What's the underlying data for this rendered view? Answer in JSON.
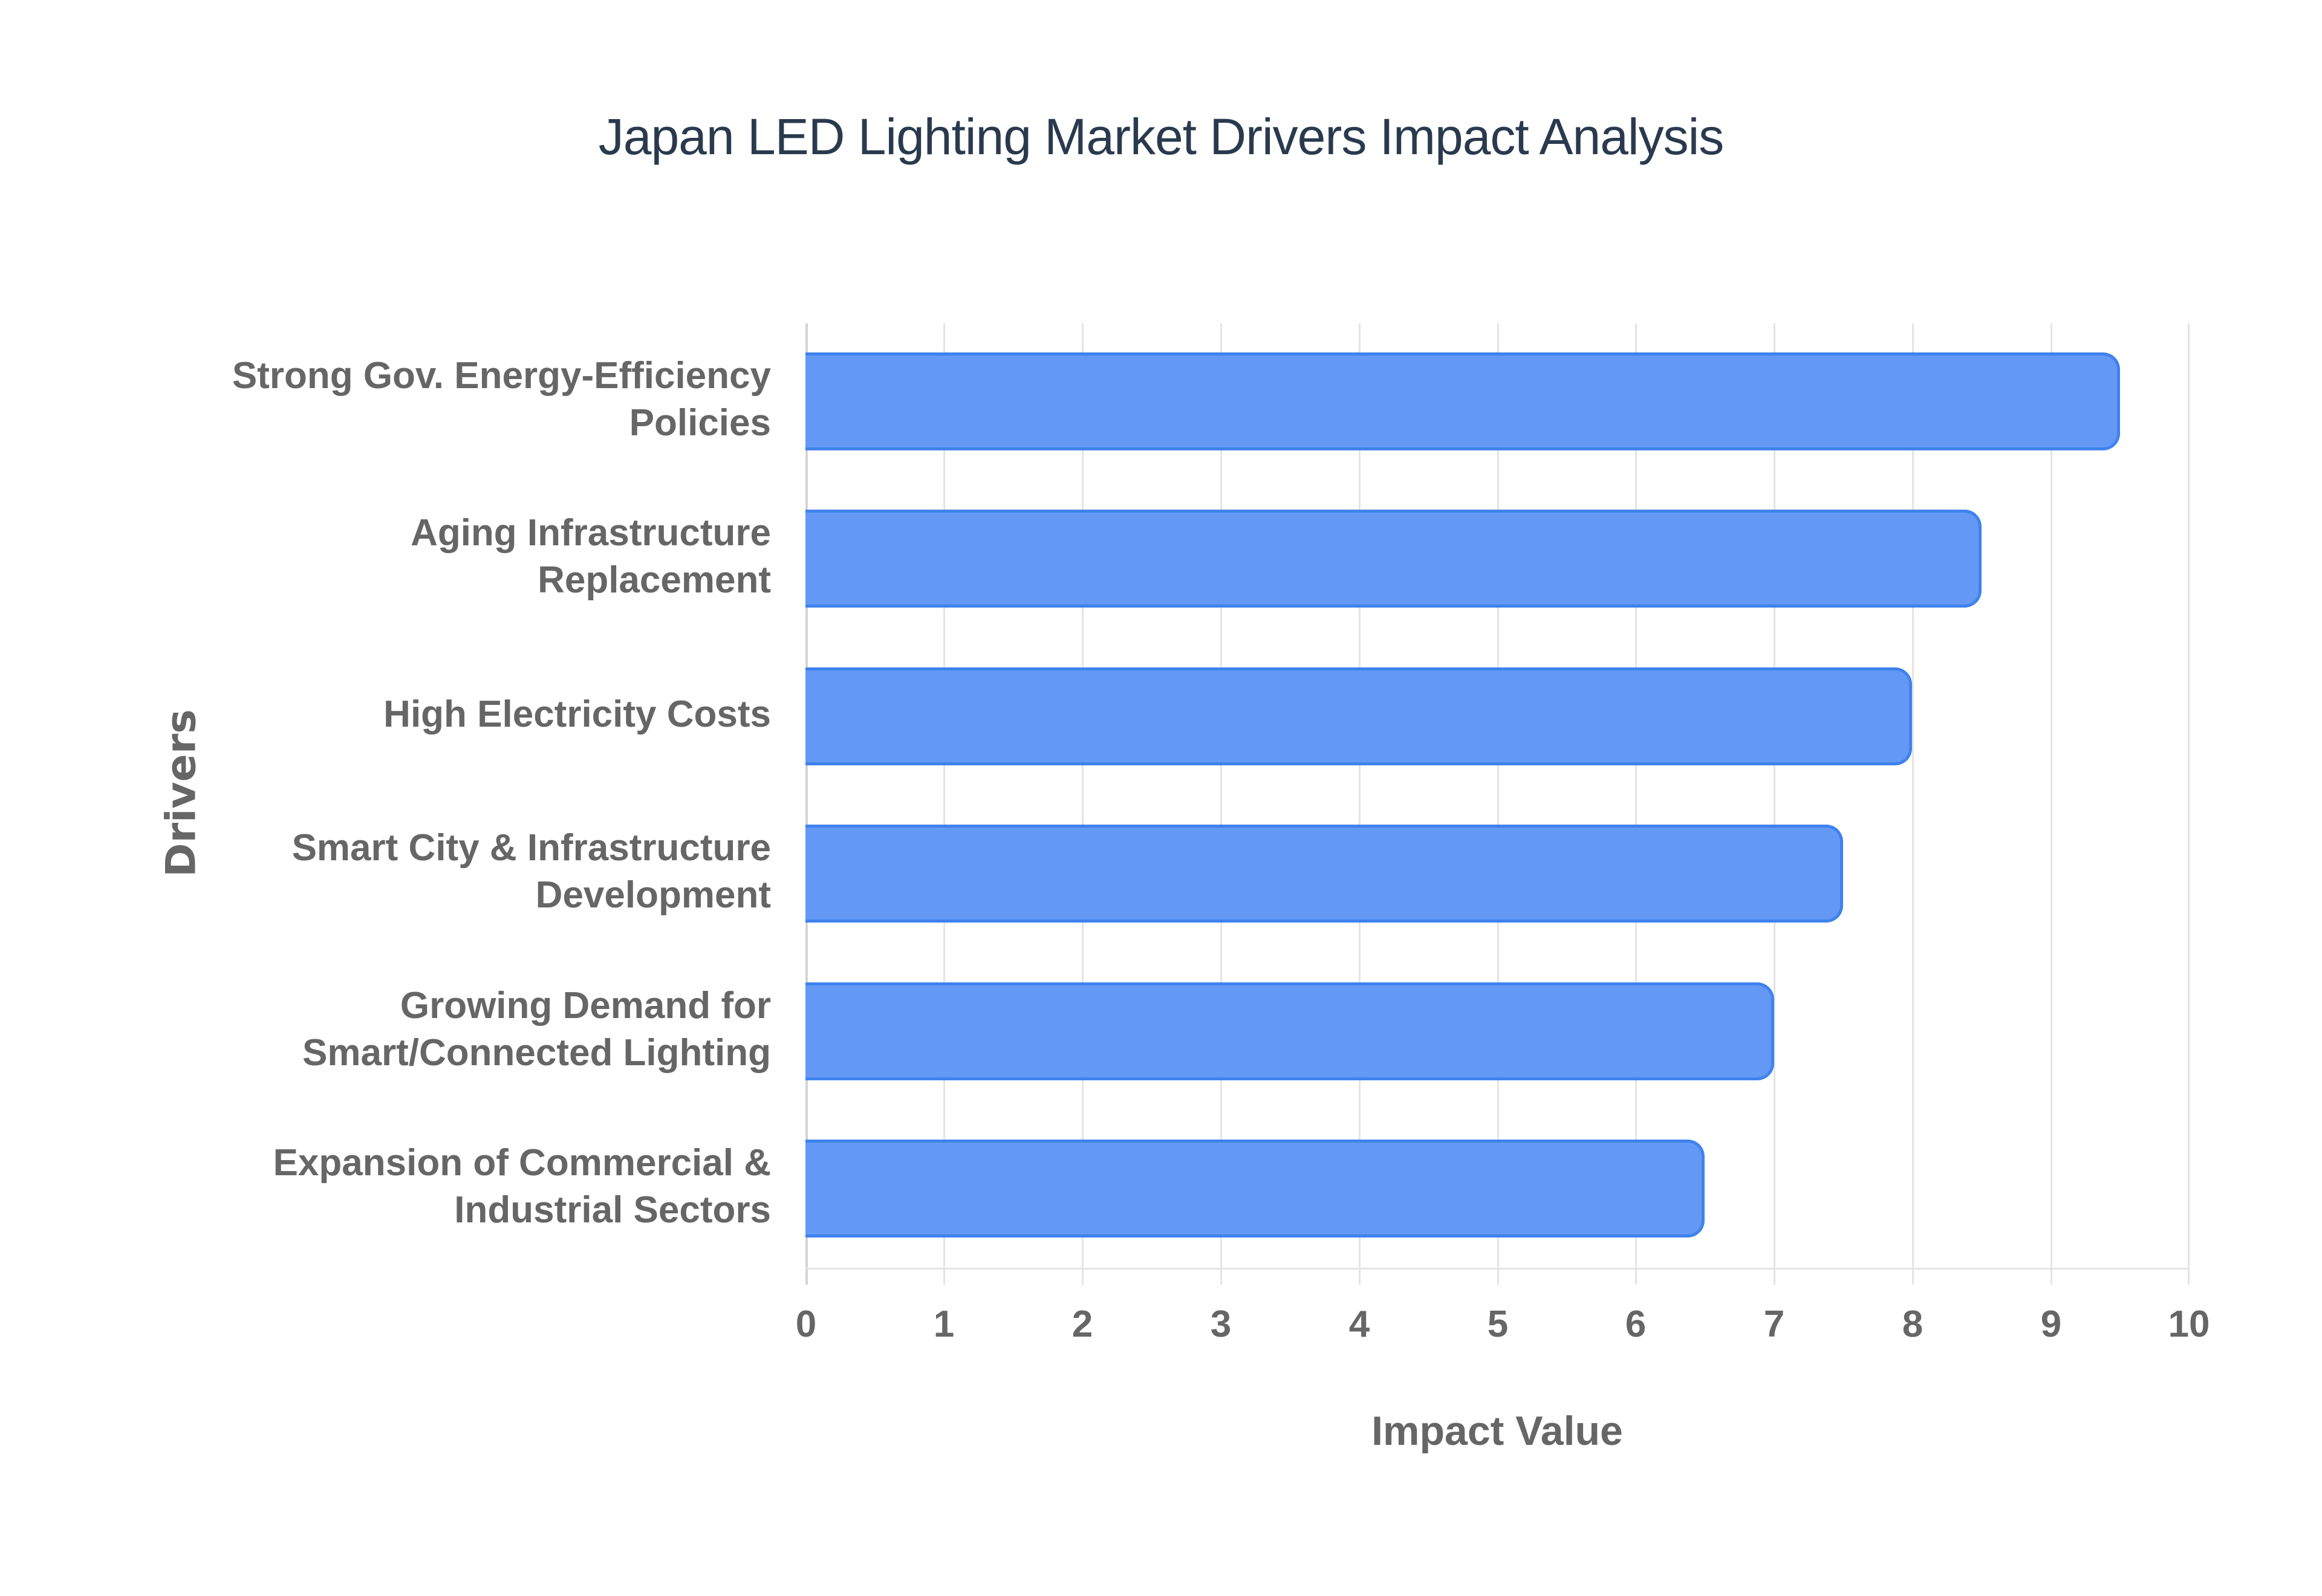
{
  "chart_data": {
    "type": "bar",
    "orientation": "horizontal",
    "title": "Japan LED Lighting Market Drivers Impact Analysis",
    "xlabel": "Impact Value",
    "ylabel": "Drivers",
    "xlim": [
      0,
      10
    ],
    "x_ticks": [
      "0",
      "1",
      "2",
      "3",
      "4",
      "5",
      "6",
      "7",
      "8",
      "9",
      "10"
    ],
    "grid": true,
    "legend": null,
    "categories": [
      "Strong Gov. Energy-Efficiency Policies",
      "Aging Infrastructure Replacement",
      "High Electricity Costs",
      "Smart City & Infrastructure Development",
      "Growing Demand for Smart/Connected Lighting",
      "Expansion of Commercial & Industrial Sectors"
    ],
    "values": [
      9.5,
      8.5,
      8.0,
      7.5,
      7.0,
      6.5
    ],
    "colors": {
      "bar_fill": "#6399f5",
      "bar_border": "#3f82ef",
      "text": "#666666",
      "title": "#2a3a4e",
      "grid": "#e4e4e4"
    }
  },
  "labels": {
    "cat0_line1": "Strong Gov. Energy-Efficiency",
    "cat0_line2": "Policies",
    "cat1_line1": "Aging Infrastructure",
    "cat1_line2": "Replacement",
    "cat2_line1": "High Electricity Costs",
    "cat3_line1": "Smart City & Infrastructure",
    "cat3_line2": "Development",
    "cat4_line1": "Growing Demand for",
    "cat4_line2": "Smart/Connected Lighting",
    "cat5_line1": "Expansion of Commercial &",
    "cat5_line2": "Industrial Sectors"
  }
}
